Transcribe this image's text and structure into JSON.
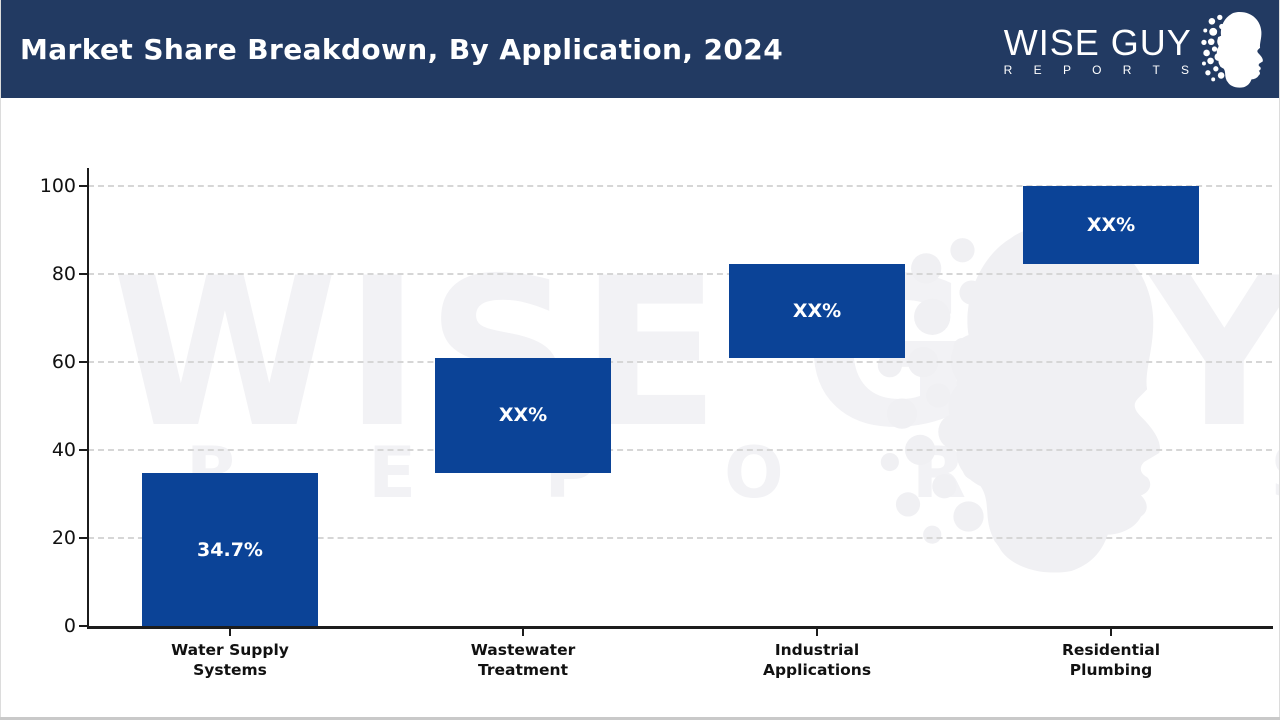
{
  "header": {
    "title": "Market Share Breakdown, By Application, 2024",
    "bg_color": "#223a62",
    "logo": {
      "line1": "WISE GUY",
      "line2": "R E P O R T S"
    }
  },
  "watermark": {
    "line1": "WISE GUY",
    "line2": "R E P O R T S"
  },
  "chart_data": {
    "type": "bar",
    "subtype": "waterfall-floating-bars",
    "title": "Market Share Breakdown, By Application, 2024",
    "categories": [
      [
        "Water Supply",
        "Systems"
      ],
      [
        "Wastewater",
        "Treatment"
      ],
      [
        "Industrial",
        "Applications"
      ],
      [
        "Residential",
        "Plumbing"
      ]
    ],
    "segments": [
      {
        "category": "Water Supply Systems",
        "start": 0,
        "end": 34.7,
        "label": "34.7%"
      },
      {
        "category": "Wastewater Treatment",
        "start": 34.7,
        "end": 61.0,
        "label": "XX%"
      },
      {
        "category": "Industrial Applications",
        "start": 61.0,
        "end": 82.3,
        "label": "XX%"
      },
      {
        "category": "Residential Plumbing",
        "start": 82.3,
        "end": 100.0,
        "label": "XX%"
      }
    ],
    "xlabel": "",
    "ylabel": "",
    "ylim": [
      0,
      100
    ],
    "yticks": [
      0,
      20,
      40,
      60,
      80,
      100
    ],
    "grid": "horizontal-dashed",
    "legend": "none",
    "bar_color": "#0b4397",
    "bar_label_color": "#ffffff",
    "axis_color": "#1c1c1c",
    "gridline_color": "#d6d6d6"
  }
}
